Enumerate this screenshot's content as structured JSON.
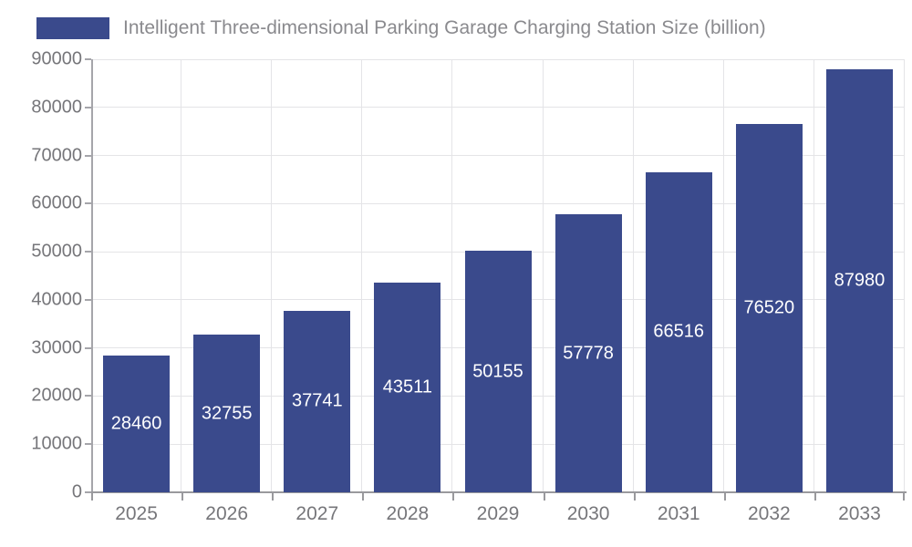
{
  "legend": {
    "label": "Intelligent Three-dimensional Parking Garage Charging Station Size (billion)",
    "swatch_color": "#3a4a8c"
  },
  "chart_data": {
    "type": "bar",
    "title": "Intelligent Three-dimensional Parking Garage Charging Station Size (billion)",
    "series_name": "Intelligent Three-dimensional Parking Garage Charging Station Size (billion)",
    "categories": [
      "2025",
      "2026",
      "2027",
      "2028",
      "2029",
      "2030",
      "2031",
      "2032",
      "2033"
    ],
    "values": [
      28460,
      32755,
      37741,
      43511,
      50155,
      57778,
      66516,
      76520,
      87980
    ],
    "value_labels": [
      "28460",
      "32755",
      "37741",
      "43511",
      "50155",
      "57778",
      "66516",
      "76520",
      "87980"
    ],
    "xlabel": "",
    "ylabel": "",
    "ylim": [
      0,
      90000
    ],
    "ytick_step": 10000,
    "yticks": [
      0,
      10000,
      20000,
      30000,
      40000,
      50000,
      60000,
      70000,
      80000,
      90000
    ],
    "grid": true,
    "grid_axes": "both",
    "legend_position": "top-left",
    "value_label_position": "inside-middle"
  },
  "colors": {
    "bar": "#3a4a8c",
    "value_label": "#ffffff",
    "grid": "#e4e4e7",
    "y_axis": "#a5a5aa",
    "x_axis": "#99999d",
    "tick_label": "#76767a",
    "legend_text": "#8a8a8e",
    "background": "#ffffff"
  }
}
